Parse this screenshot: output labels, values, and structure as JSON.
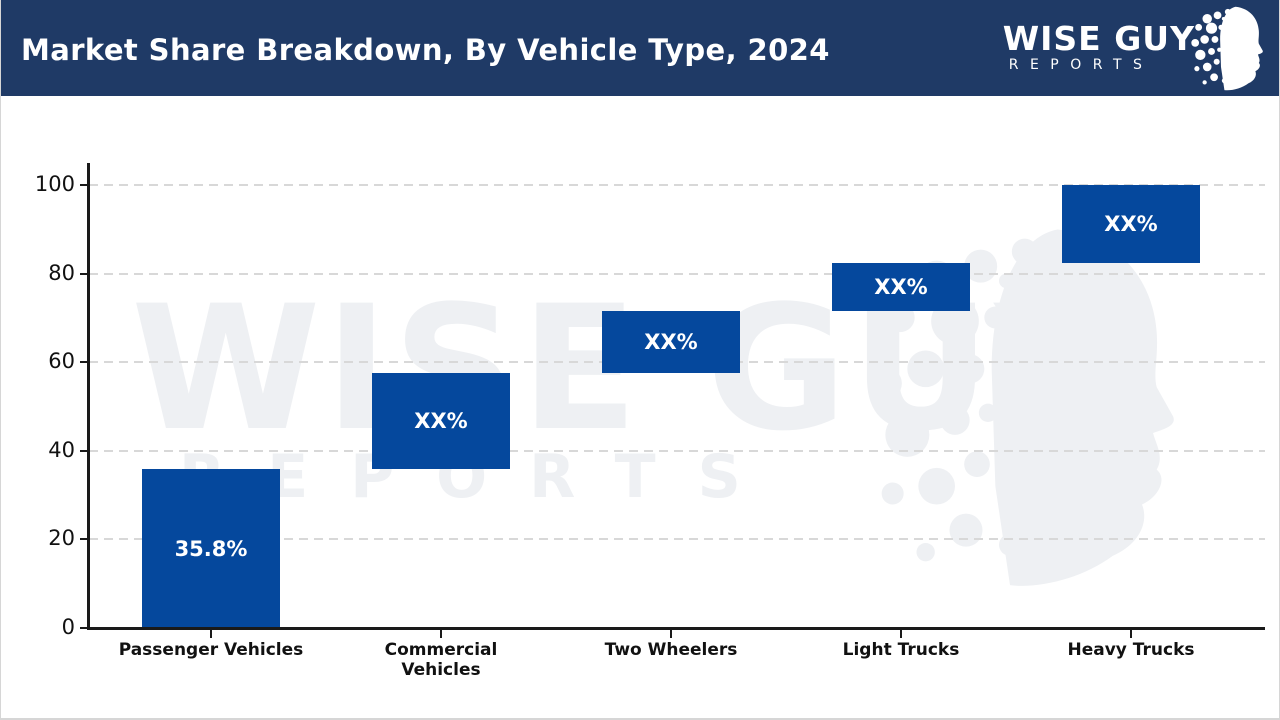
{
  "header": {
    "title": "Market Share Breakdown, By Vehicle Type, 2024",
    "logo": {
      "line1": "WISE GUY",
      "line2": "REPORTS"
    },
    "bg_color": "#1f3a66"
  },
  "watermark": {
    "line1": "WISE GUY",
    "line2": "REPORTS"
  },
  "chart_data": {
    "type": "bar",
    "subtype": "waterfall",
    "title": "Market Share Breakdown, By Vehicle Type, 2024",
    "categories": [
      "Passenger Vehicles",
      "Commercial Vehicles",
      "Two Wheelers",
      "Light Trucks",
      "Heavy Trucks"
    ],
    "category_display": [
      "Passenger Vehicles",
      "Commercial\nVehicles",
      "Two Wheelers",
      "Light Trucks",
      "Heavy Trucks"
    ],
    "segments": [
      {
        "category": "Passenger Vehicles",
        "start": 0,
        "end": 35.8,
        "size": 35.8,
        "label": "35.8%"
      },
      {
        "category": "Commercial Vehicles",
        "start": 35.8,
        "end": 57.5,
        "size": 21.7,
        "label": "XX%"
      },
      {
        "category": "Two Wheelers",
        "start": 57.5,
        "end": 71.5,
        "size": 14.0,
        "label": "XX%"
      },
      {
        "category": "Light Trucks",
        "start": 71.5,
        "end": 82.5,
        "size": 11.0,
        "label": "XX%"
      },
      {
        "category": "Heavy Trucks",
        "start": 82.5,
        "end": 100,
        "size": 17.5,
        "label": "XX%"
      }
    ],
    "xlabel": "",
    "ylabel": "",
    "ylim": [
      0,
      105
    ],
    "yticks": [
      0,
      20,
      40,
      60,
      80,
      100
    ],
    "grid": "horizontal-dashed",
    "legend": "none",
    "bar_color": "#05489d",
    "bar_label_color": "#ffffff",
    "grid_color": "#d8d8d8",
    "axis_color": "#1a1a1a"
  }
}
